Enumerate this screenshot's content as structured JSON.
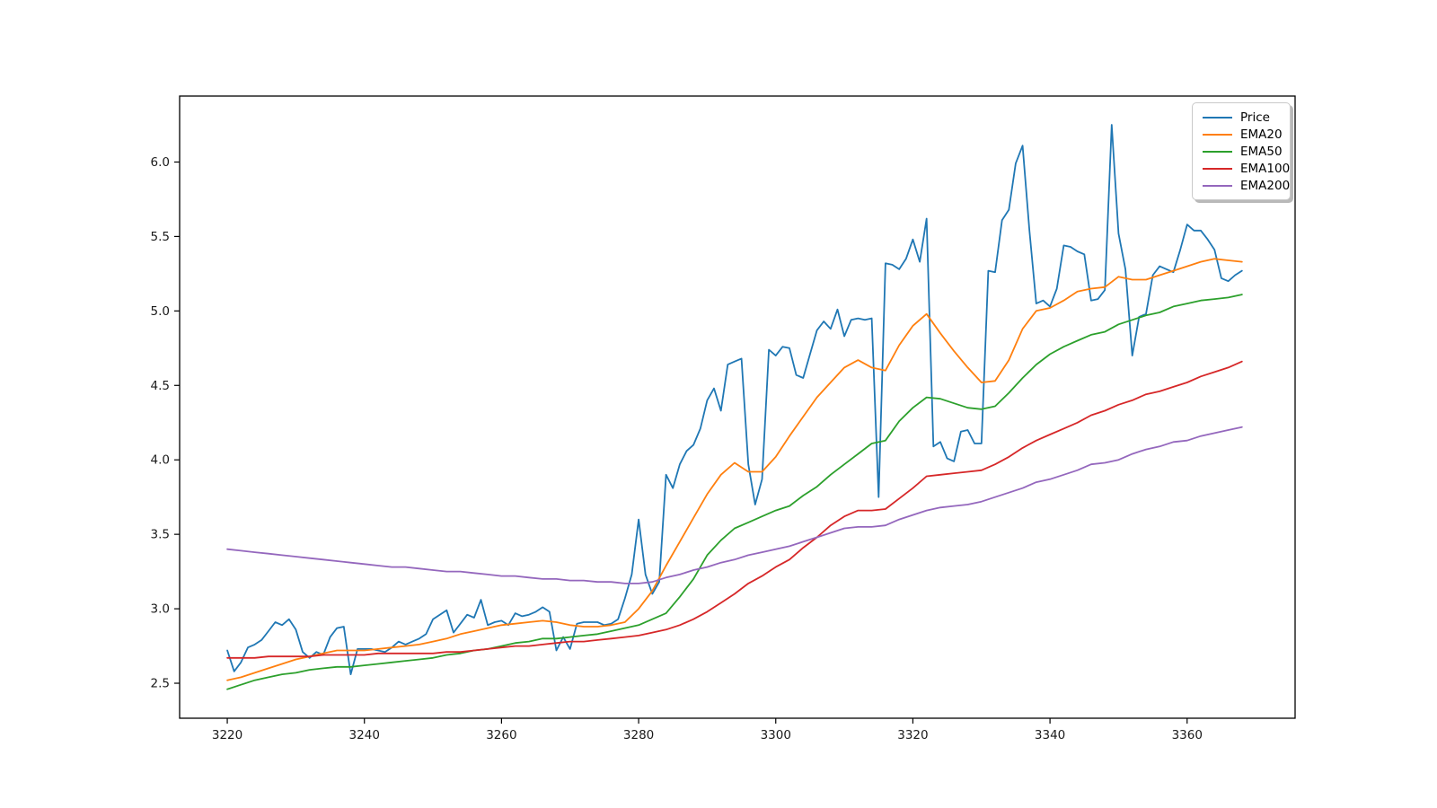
{
  "chart_data": {
    "type": "line",
    "title": "",
    "xlabel": "",
    "ylabel": "",
    "grid": false,
    "background": "#ffffff",
    "spine_color": "#000000",
    "xlim": [
      3213.05,
      3375.75
    ],
    "ylim": [
      2.265,
      6.443
    ],
    "xticks": [
      3220,
      3240,
      3260,
      3280,
      3300,
      3320,
      3340,
      3360
    ],
    "yticks": [
      2.5,
      3.0,
      3.5,
      4.0,
      4.5,
      5.0,
      5.5,
      6.0
    ],
    "legend": {
      "position": "upper right",
      "items": [
        "Price",
        "EMA20",
        "EMA50",
        "EMA100",
        "EMA200"
      ]
    },
    "series": [
      {
        "name": "Price",
        "color": "#1f77b4",
        "x_start": 3220,
        "x_step": 1,
        "values": [
          2.72,
          2.58,
          2.64,
          2.74,
          2.76,
          2.79,
          2.85,
          2.91,
          2.89,
          2.93,
          2.86,
          2.71,
          2.67,
          2.71,
          2.69,
          2.81,
          2.87,
          2.88,
          2.56,
          2.73,
          2.73,
          2.73,
          2.72,
          2.71,
          2.74,
          2.78,
          2.76,
          2.78,
          2.8,
          2.83,
          2.93,
          2.96,
          2.99,
          2.84,
          2.9,
          2.96,
          2.94,
          3.06,
          2.89,
          2.91,
          2.92,
          2.89,
          2.97,
          2.95,
          2.96,
          2.98,
          3.01,
          2.98,
          2.72,
          2.81,
          2.73,
          2.9,
          2.91,
          2.91,
          2.91,
          2.89,
          2.9,
          2.93,
          3.07,
          3.23,
          3.6,
          3.23,
          3.1,
          3.18,
          3.9,
          3.81,
          3.97,
          4.06,
          4.1,
          4.21,
          4.4,
          4.48,
          4.33,
          4.64,
          4.66,
          4.68,
          3.97,
          3.7,
          3.87,
          4.74,
          4.7,
          4.76,
          4.75,
          4.57,
          4.55,
          4.71,
          4.87,
          4.93,
          4.88,
          5.01,
          4.83,
          4.94,
          4.95,
          4.94,
          4.95,
          3.75,
          5.32,
          5.31,
          5.28,
          5.35,
          5.48,
          5.33,
          5.62,
          4.09,
          4.12,
          4.01,
          3.99,
          4.19,
          4.2,
          4.11,
          4.11,
          5.27,
          5.26,
          5.61,
          5.68,
          5.99,
          6.11,
          5.54,
          5.05,
          5.07,
          5.03,
          5.15,
          5.44,
          5.43,
          5.4,
          5.38,
          5.07,
          5.08,
          5.14,
          6.25,
          5.52,
          5.28,
          4.7,
          4.96,
          4.98,
          5.24,
          5.3,
          5.28,
          5.26,
          5.41,
          5.58,
          5.54,
          5.54,
          5.48,
          5.41,
          5.22,
          5.2,
          5.24,
          5.27
        ]
      },
      {
        "name": "EMA20",
        "color": "#ff7f0e",
        "x_start": 3220,
        "x_step": 2,
        "values": [
          2.52,
          2.54,
          2.57,
          2.6,
          2.63,
          2.66,
          2.68,
          2.7,
          2.72,
          2.72,
          2.72,
          2.73,
          2.74,
          2.75,
          2.76,
          2.78,
          2.8,
          2.83,
          2.85,
          2.87,
          2.89,
          2.9,
          2.91,
          2.92,
          2.91,
          2.89,
          2.88,
          2.88,
          2.89,
          2.91,
          3.0,
          3.12,
          3.29,
          3.45,
          3.61,
          3.77,
          3.9,
          3.98,
          3.92,
          3.92,
          4.02,
          4.16,
          4.29,
          4.42,
          4.52,
          4.62,
          4.67,
          4.62,
          4.6,
          4.77,
          4.9,
          4.98,
          4.85,
          4.73,
          4.62,
          4.52,
          4.53,
          4.67,
          4.88,
          5.0,
          5.02,
          5.07,
          5.13,
          5.15,
          5.16,
          5.23,
          5.21,
          5.21,
          5.24,
          5.27,
          5.3,
          5.33,
          5.35,
          5.34,
          5.33
        ]
      },
      {
        "name": "EMA50",
        "color": "#2ca02c",
        "x_start": 3220,
        "x_step": 2,
        "values": [
          2.46,
          2.49,
          2.52,
          2.54,
          2.56,
          2.57,
          2.59,
          2.6,
          2.61,
          2.61,
          2.62,
          2.63,
          2.64,
          2.65,
          2.66,
          2.67,
          2.69,
          2.7,
          2.72,
          2.73,
          2.75,
          2.77,
          2.78,
          2.8,
          2.8,
          2.81,
          2.82,
          2.83,
          2.85,
          2.87,
          2.89,
          2.93,
          2.97,
          3.08,
          3.2,
          3.36,
          3.46,
          3.54,
          3.58,
          3.62,
          3.66,
          3.69,
          3.76,
          3.82,
          3.9,
          3.97,
          4.04,
          4.11,
          4.13,
          4.26,
          4.35,
          4.42,
          4.41,
          4.38,
          4.35,
          4.34,
          4.36,
          4.45,
          4.55,
          4.64,
          4.71,
          4.76,
          4.8,
          4.84,
          4.86,
          4.91,
          4.94,
          4.97,
          4.99,
          5.03,
          5.05,
          5.07,
          5.08,
          5.09,
          5.11
        ]
      },
      {
        "name": "EMA100",
        "color": "#d62728",
        "x_start": 3220,
        "x_step": 2,
        "values": [
          2.67,
          2.67,
          2.67,
          2.68,
          2.68,
          2.68,
          2.68,
          2.69,
          2.69,
          2.69,
          2.69,
          2.7,
          2.7,
          2.7,
          2.7,
          2.7,
          2.71,
          2.71,
          2.72,
          2.73,
          2.74,
          2.75,
          2.75,
          2.76,
          2.77,
          2.78,
          2.78,
          2.79,
          2.8,
          2.81,
          2.82,
          2.84,
          2.86,
          2.89,
          2.93,
          2.98,
          3.04,
          3.1,
          3.17,
          3.22,
          3.28,
          3.33,
          3.41,
          3.48,
          3.56,
          3.62,
          3.66,
          3.66,
          3.67,
          3.74,
          3.81,
          3.89,
          3.9,
          3.91,
          3.92,
          3.93,
          3.97,
          4.02,
          4.08,
          4.13,
          4.17,
          4.21,
          4.25,
          4.3,
          4.33,
          4.37,
          4.4,
          4.44,
          4.46,
          4.49,
          4.52,
          4.56,
          4.59,
          4.62,
          4.66
        ]
      },
      {
        "name": "EMA200",
        "color": "#9467bd",
        "x_start": 3220,
        "x_step": 2,
        "values": [
          3.4,
          3.39,
          3.38,
          3.37,
          3.36,
          3.35,
          3.34,
          3.33,
          3.32,
          3.31,
          3.3,
          3.29,
          3.28,
          3.28,
          3.27,
          3.26,
          3.25,
          3.25,
          3.24,
          3.23,
          3.22,
          3.22,
          3.21,
          3.2,
          3.2,
          3.19,
          3.19,
          3.18,
          3.18,
          3.17,
          3.17,
          3.18,
          3.21,
          3.23,
          3.26,
          3.28,
          3.31,
          3.33,
          3.36,
          3.38,
          3.4,
          3.42,
          3.45,
          3.48,
          3.51,
          3.54,
          3.55,
          3.55,
          3.56,
          3.6,
          3.63,
          3.66,
          3.68,
          3.69,
          3.7,
          3.72,
          3.75,
          3.78,
          3.81,
          3.85,
          3.87,
          3.9,
          3.93,
          3.97,
          3.98,
          4.0,
          4.04,
          4.07,
          4.09,
          4.12,
          4.13,
          4.16,
          4.18,
          4.2,
          4.22
        ]
      }
    ]
  }
}
